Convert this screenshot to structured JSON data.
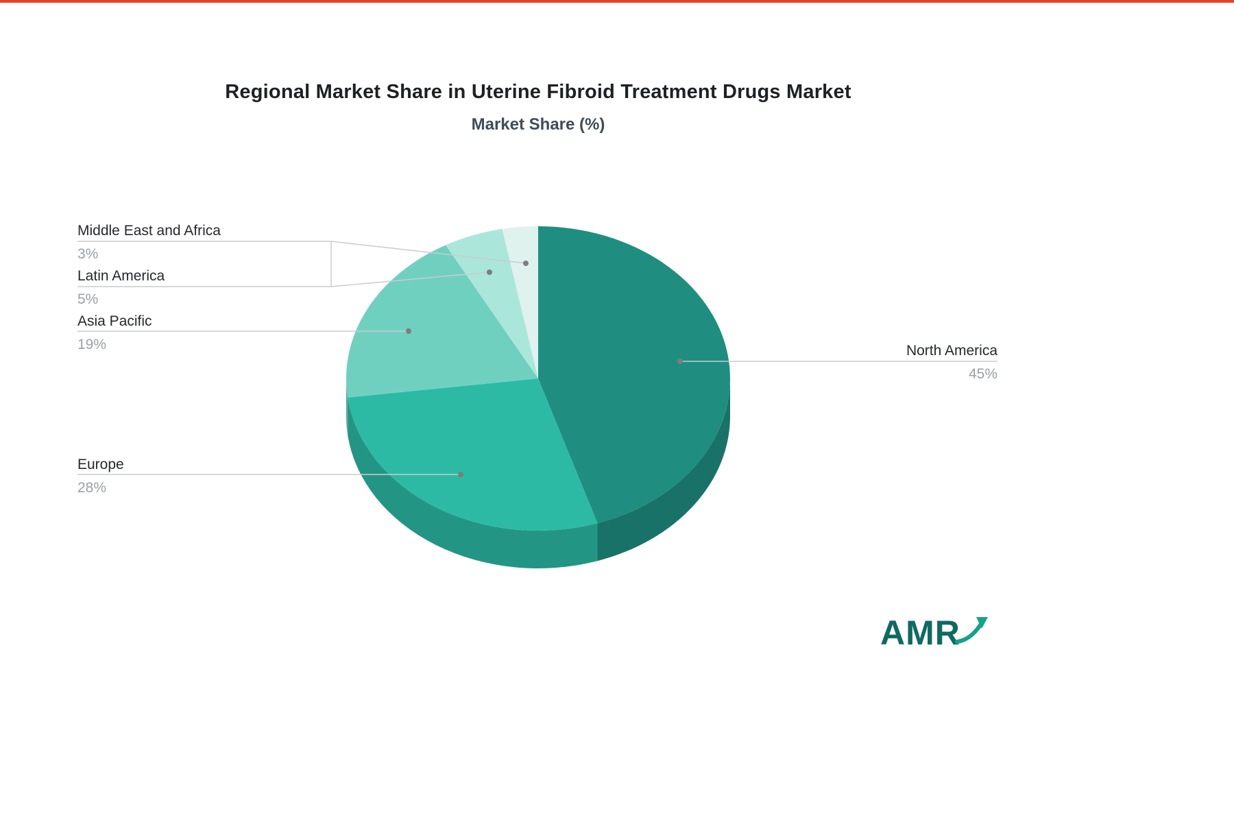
{
  "decor": {
    "top_line_color": "#e8402a"
  },
  "logo": {
    "text": "AMR",
    "color": "#0f6a60",
    "arrow_color": "#17a18b"
  },
  "chart_data": {
    "type": "pie",
    "style": "3d",
    "title": "Regional Market Share in Uterine Fibroid Treatment Drugs Market",
    "subtitle": "Market Share (%)",
    "unit": "%",
    "start_angle_deg": 0,
    "direction": "clockwise",
    "total": 100,
    "legend_position": "none",
    "label_style": "callout",
    "slices": [
      {
        "label": "North America",
        "value": 45,
        "display": "45%",
        "color": "#1f8e81"
      },
      {
        "label": "Europe",
        "value": 28,
        "display": "28%",
        "color": "#2cbaa5"
      },
      {
        "label": "Asia Pacific",
        "value": 19,
        "display": "19%",
        "color": "#70d0c0"
      },
      {
        "label": "Latin America",
        "value": 5,
        "display": "5%",
        "color": "#abe6db"
      },
      {
        "label": "Middle East and Africa",
        "value": 3,
        "display": "3%",
        "color": "#dff2ee"
      }
    ]
  }
}
